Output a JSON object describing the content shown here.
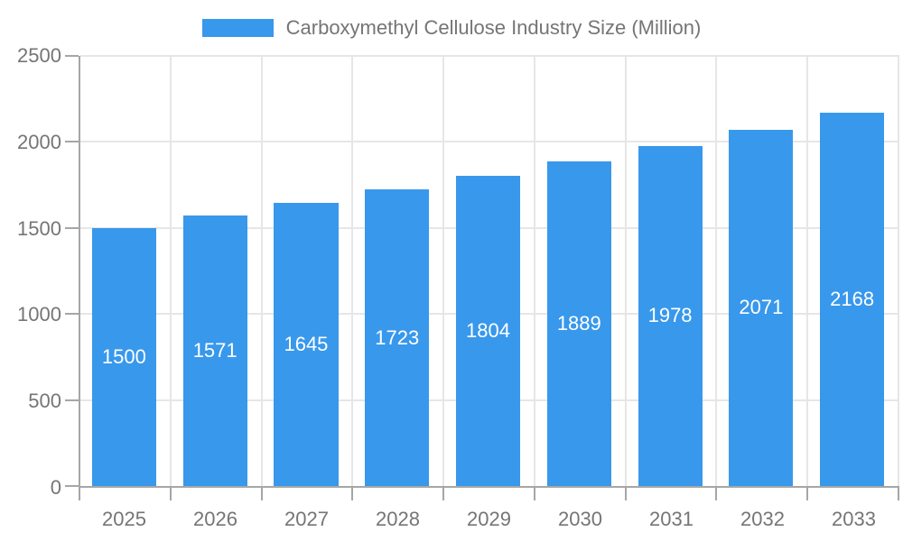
{
  "chart_data": {
    "type": "bar",
    "title": "Carboxymethyl Cellulose Industry Size (Million)",
    "legend": {
      "label": "Carboxymethyl Cellulose Industry Size (Million)",
      "position": "top"
    },
    "categories": [
      "2025",
      "2026",
      "2027",
      "2028",
      "2029",
      "2030",
      "2031",
      "2032",
      "2033"
    ],
    "values": [
      1500,
      1571,
      1645,
      1723,
      1804,
      1889,
      1978,
      2071,
      2168
    ],
    "xlabel": "",
    "ylabel": "",
    "ylim": [
      0,
      2500
    ],
    "yticks": [
      0,
      500,
      1000,
      1500,
      2000,
      2500
    ],
    "grid": true,
    "value_labels": "centered-inside-bars",
    "colors": {
      "bar": "#3898EC",
      "value_label": "#FFFFFF",
      "axis_text": "#757575",
      "axis_line": "#A6A6A6",
      "gridline": "#E6E6E6",
      "background": "#FFFFFF"
    }
  }
}
